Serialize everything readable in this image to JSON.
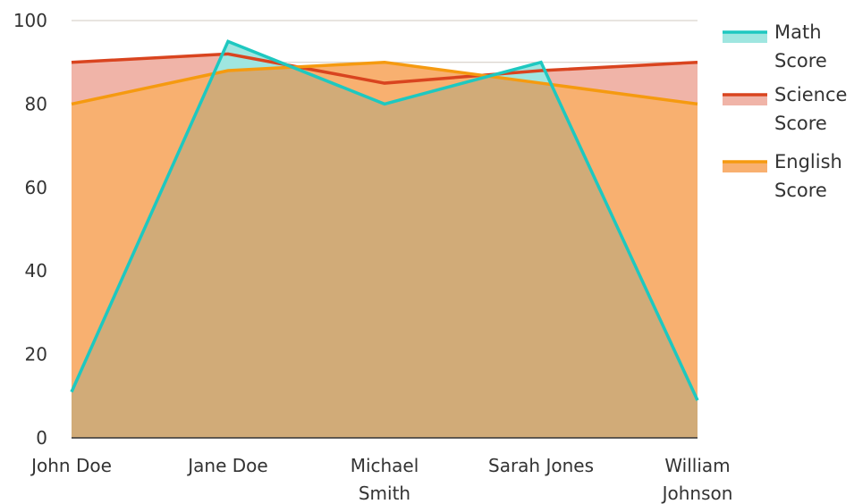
{
  "chart_data": {
    "type": "area",
    "categories": [
      "John Doe",
      "Jane Doe",
      "Michael Smith",
      "Sarah Jones",
      "William Johnson"
    ],
    "series": [
      {
        "name": "Math Score",
        "values": [
          11,
          95,
          80,
          90,
          9
        ],
        "color": "#1ec8c0",
        "fill": "#9fe6e0"
      },
      {
        "name": "Science Score",
        "values": [
          90,
          92,
          85,
          88,
          90
        ],
        "color": "#d9441f",
        "fill": "#f0b4a8"
      },
      {
        "name": "English Score",
        "values": [
          80,
          88,
          90,
          85,
          80
        ],
        "color": "#f59a10",
        "fill": "#f8b070"
      }
    ],
    "overlap_fill": "#d1ab78",
    "ylim": [
      0,
      100
    ],
    "yticks": [
      "0",
      "20",
      "40",
      "60",
      "80",
      "100"
    ],
    "grid": true,
    "legend": "right"
  }
}
